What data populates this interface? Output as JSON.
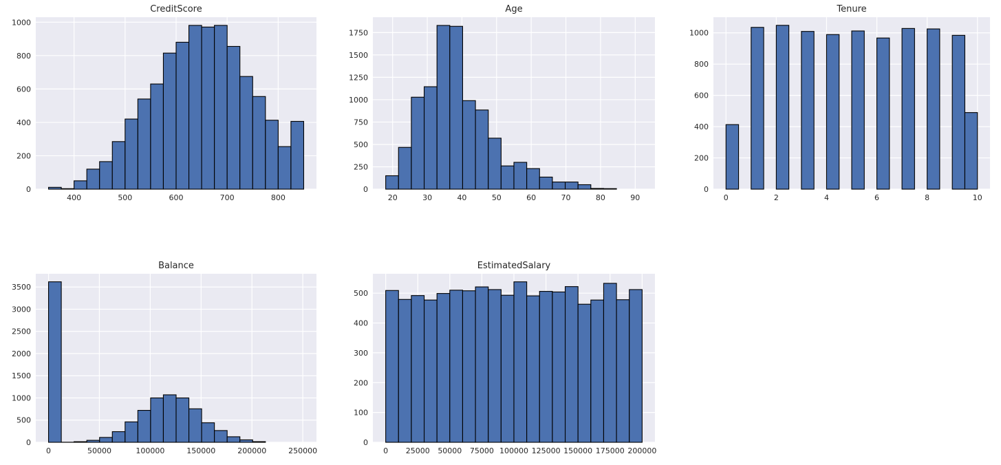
{
  "colors": {
    "background": "#ffffff",
    "panel_bg": "#eaeaf2",
    "grid": "#ffffff",
    "bar_fill": "#4c72b0",
    "bar_edge": "#000000",
    "text": "#262626"
  },
  "chart_data": [
    {
      "type": "bar",
      "subtype": "histogram",
      "title": "CreditScore",
      "bin_start": 350,
      "bin_width": 25,
      "counts": [
        11,
        3,
        50,
        120,
        165,
        285,
        420,
        540,
        630,
        815,
        880,
        981,
        971,
        981,
        855,
        675,
        555,
        413,
        255,
        406
      ],
      "xlim": [
        325,
        875
      ],
      "ylim": [
        0,
        1030
      ],
      "xticks": [
        400,
        500,
        600,
        700,
        800
      ],
      "yticks": [
        0,
        200,
        400,
        600,
        800,
        1000
      ],
      "grid": true
    },
    {
      "type": "bar",
      "subtype": "histogram",
      "title": "Age",
      "bin_start": 18,
      "bin_width": 3.7,
      "counts": [
        150,
        467,
        1028,
        1145,
        1830,
        1820,
        990,
        885,
        570,
        260,
        300,
        230,
        135,
        80,
        80,
        50,
        8,
        6,
        0,
        0
      ],
      "xlim": [
        14.3,
        95.7
      ],
      "ylim": [
        0,
        1922
      ],
      "xticks": [
        20,
        30,
        40,
        50,
        60,
        70,
        80,
        90
      ],
      "yticks": [
        0,
        250,
        500,
        750,
        1000,
        1250,
        1500,
        1750
      ],
      "grid": true
    },
    {
      "type": "bar",
      "subtype": "histogram",
      "title": "Tenure",
      "bin_start": 0,
      "bin_width": 0.5,
      "counts": [
        413,
        0,
        1035,
        0,
        1048,
        0,
        1009,
        0,
        989,
        0,
        1012,
        0,
        967,
        0,
        1028,
        0,
        1025,
        0,
        984,
        490
      ],
      "xlim": [
        -0.5,
        10.5
      ],
      "ylim": [
        0,
        1100
      ],
      "xticks": [
        0,
        2,
        4,
        6,
        8,
        10
      ],
      "yticks": [
        0,
        200,
        400,
        600,
        800,
        1000
      ],
      "grid": true
    },
    {
      "type": "bar",
      "subtype": "histogram",
      "title": "Balance",
      "bin_start": 0,
      "bin_width": 12545,
      "counts": [
        3617,
        2,
        14,
        45,
        110,
        240,
        460,
        720,
        1000,
        1070,
        1000,
        755,
        440,
        265,
        125,
        55,
        15,
        0,
        0,
        0
      ],
      "xlim": [
        -12545,
        263443
      ],
      "ylim": [
        0,
        3798
      ],
      "xticks": [
        0,
        50000,
        100000,
        150000,
        200000,
        250000
      ],
      "yticks": [
        0,
        500,
        1000,
        1500,
        2000,
        2500,
        3000,
        3500
      ],
      "grid": true
    },
    {
      "type": "bar",
      "subtype": "histogram",
      "title": "EstimatedSalary",
      "bin_start": 0,
      "bin_width": 10000,
      "counts": [
        509,
        479,
        492,
        477,
        499,
        510,
        508,
        521,
        512,
        493,
        538,
        491,
        506,
        504,
        522,
        463,
        477,
        533,
        478,
        512
      ],
      "xlim": [
        -10000,
        210000
      ],
      "ylim": [
        0,
        565
      ],
      "xticks": [
        0,
        25000,
        50000,
        75000,
        100000,
        125000,
        150000,
        175000,
        200000
      ],
      "yticks": [
        0,
        100,
        200,
        300,
        400,
        500
      ],
      "grid": true
    }
  ]
}
